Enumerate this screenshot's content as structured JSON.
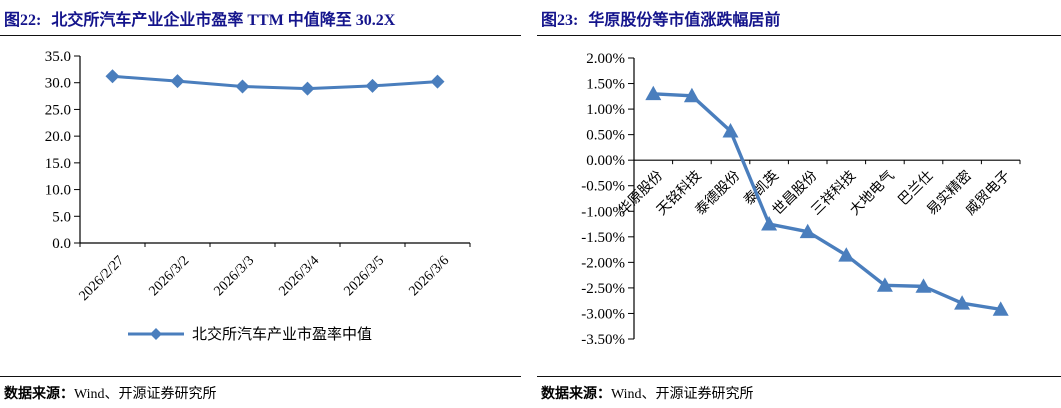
{
  "page": {
    "background": "#ffffff",
    "title_color": "#14148C",
    "series_color": "#4A7EBD"
  },
  "panels": [
    {
      "figure_label": "图22:",
      "title": "北交所汽车产业企业市盈率 TTM 中值降至 30.2X",
      "source_label": "数据来源：",
      "source_text": "Wind、开源证券研究所"
    },
    {
      "figure_label": "图23:",
      "title": "华原股份等市值涨跌幅居前",
      "source_label": "数据来源：",
      "source_text": "Wind、开源证券研究所"
    }
  ],
  "chart_data": [
    {
      "type": "line",
      "title": "北交所汽车产业企业市盈率TTM中值降至30.2X",
      "categories": [
        "2026/2/27",
        "2026/3/2",
        "2026/3/3",
        "2026/3/4",
        "2026/3/5",
        "2026/3/6"
      ],
      "values": [
        31.2,
        30.3,
        29.3,
        28.9,
        29.4,
        30.2
      ],
      "series_name": "北交所汽车产业市盈率中值",
      "legend": [
        "北交所汽车产业市盈率中值"
      ],
      "legend_position": "bottom",
      "marker": "diamond",
      "color": "#4A7EBD",
      "ylim": [
        0,
        35
      ],
      "ytick_step": 5,
      "yticks": [
        "35.0",
        "30.0",
        "25.0",
        "20.0",
        "15.0",
        "10.0",
        "5.0",
        "0.0"
      ],
      "xlabel": "",
      "ylabel": "",
      "grid": false
    },
    {
      "type": "line",
      "title": "华原股份等市值涨跌幅居前",
      "categories": [
        "华原股份",
        "天铭科技",
        "泰德股份",
        "泰凯英",
        "世昌股份",
        "三祥科技",
        "大地电气",
        "巴兰仕",
        "易实精密",
        "威贸电子"
      ],
      "values": [
        1.3,
        1.26,
        0.57,
        -1.25,
        -1.4,
        -1.86,
        -2.45,
        -2.47,
        -2.8,
        -2.92
      ],
      "value_unit": "%",
      "legend_position": "none",
      "marker": "triangle",
      "color": "#4A7EBD",
      "ylim": [
        -3.5,
        2.0
      ],
      "ytick_step": 0.5,
      "yticks": [
        "2.00%",
        "1.50%",
        "1.00%",
        "0.50%",
        "0.00%",
        "-0.50%",
        "-1.00%",
        "-1.50%",
        "-2.00%",
        "-2.50%",
        "-3.00%",
        "-3.50%"
      ],
      "xlabel": "",
      "ylabel": "",
      "grid": false
    }
  ]
}
